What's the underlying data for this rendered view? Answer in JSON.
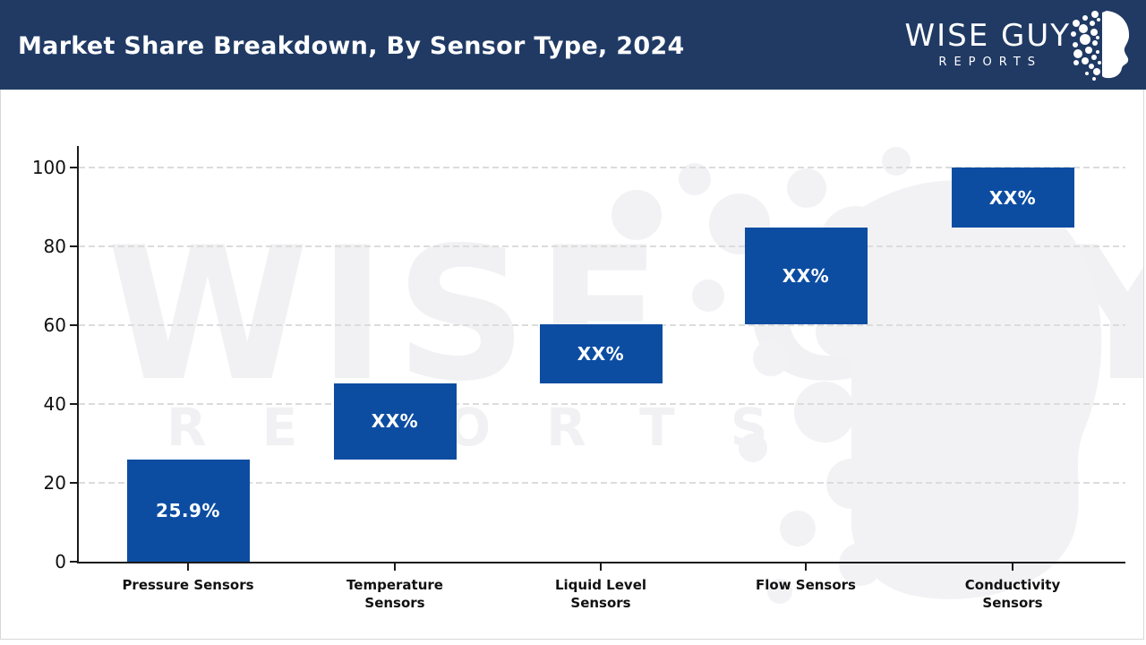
{
  "header": {
    "title": "Market Share Breakdown, By Sensor Type, 2024",
    "background_color": "#203a64",
    "logo": {
      "name": "WISE GUY",
      "tagline": "REPORTS"
    }
  },
  "watermark": {
    "line1": "WISE GUY",
    "line2": "REPORTS"
  },
  "chart_data": {
    "type": "bar",
    "subtype": "floating-waterfall",
    "title": "Market Share Breakdown, By Sensor Type, 2024",
    "categories": [
      "Pressure Sensors",
      "Temperature Sensors",
      "Liquid Level Sensors",
      "Flow Sensors",
      "Conductivity Sensors"
    ],
    "series": [
      {
        "name": "Market share (%)",
        "segments": [
          {
            "category": "Pressure Sensors",
            "start": 0,
            "end": 25.9,
            "label": "25.9%"
          },
          {
            "category": "Temperature Sensors",
            "start": 25.9,
            "end": 45.3,
            "label": "XX%"
          },
          {
            "category": "Liquid Level Sensors",
            "start": 45.3,
            "end": 60.3,
            "label": "XX%"
          },
          {
            "category": "Flow Sensors",
            "start": 60.3,
            "end": 84.7,
            "label": "XX%"
          },
          {
            "category": "Conductivity Sensors",
            "start": 84.7,
            "end": 100,
            "label": "XX%"
          }
        ]
      }
    ],
    "bar_color": "#0c4da2",
    "bar_label_color": "#ffffff",
    "xlabel": "",
    "ylabel": "",
    "ylim": [
      0,
      105.5
    ],
    "yticks": [
      0,
      20,
      40,
      60,
      80,
      100
    ],
    "grid": {
      "horizontal": true,
      "style": "dashed",
      "color": "#dcdcdc"
    },
    "legend": "none"
  }
}
